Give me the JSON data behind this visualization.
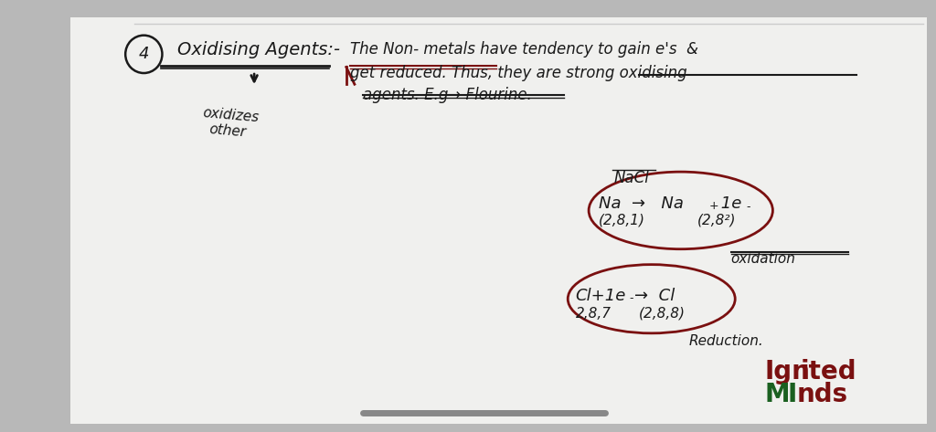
{
  "bg_color": "#b8b8b8",
  "board_color": "#f0f0ee",
  "black_color": "#1a1a1a",
  "dark_red": "#7a1010",
  "green_color": "#1a6020",
  "heading_number": "(4)",
  "heading_text": "Oxidising Agents:-",
  "line1": "The Non- metals have tendency to gain e's  &",
  "line2": "get reduced. Thus, they are strong oxidising",
  "line3": "agents. E.g→ Flourine.",
  "side1": "oxidizes",
  "side2": "other",
  "nacl": "NaCl",
  "na_eq1": "Na  →   Na",
  "na_sup": "+",
  "na_eq2": " 1e",
  "na_sup2": "-",
  "na_sub1": "(2,8,1)",
  "na_sub2": "(2,8²)",
  "oxidation": "oxidation",
  "cl_eq1": "Cl+1e",
  "cl_sup": "-",
  "cl_eq2": "→  Cl",
  "cl_sub1": "2,8,7",
  "cl_sub2": "(2,8,8)",
  "reduction": "Reduction.",
  "logo_ign": "Ign",
  "logo_ited": "ited",
  "logo_m": "M",
  "logo_i": "I",
  "logo_nds": "nds"
}
